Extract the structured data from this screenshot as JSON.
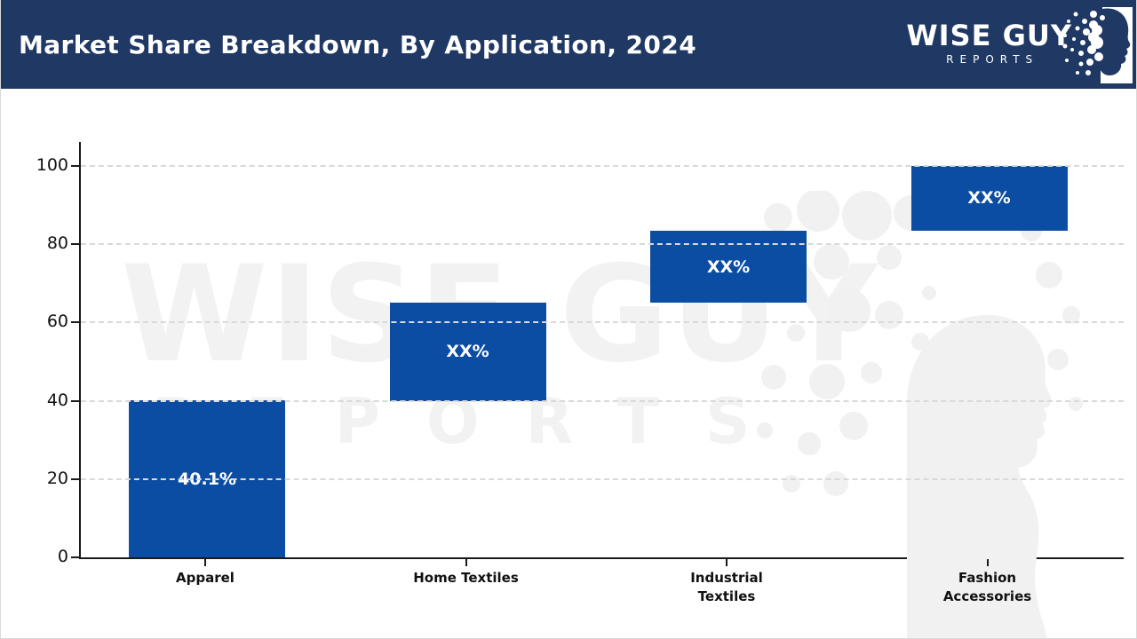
{
  "header": {
    "title": "Market Share Breakdown, By Application, 2024",
    "bg_color": "#1f3864",
    "logo": {
      "brand_line1": "WISE GUY",
      "brand_line2": "REPORTS"
    }
  },
  "watermark": {
    "line1": "WISE GUY",
    "line2": "REPORTS"
  },
  "chart_data": {
    "type": "bar",
    "variant": "floating-waterfall",
    "title": "Market Share Breakdown, By Application, 2024",
    "categories": [
      "Apparel",
      "Home Textiles",
      "Industrial\nTextiles",
      "Fashion\nAccessories"
    ],
    "bars": [
      {
        "category": "Apparel",
        "base": 0,
        "top": 40.1,
        "label": "40.1%"
      },
      {
        "category": "Home Textiles",
        "base": 40,
        "top": 65,
        "label": "XX%"
      },
      {
        "category": "Industrial Textiles",
        "base": 65,
        "top": 83.5,
        "label": "XX%"
      },
      {
        "category": "Fashion Accessories",
        "base": 83.5,
        "top": 100,
        "label": "XX%"
      }
    ],
    "xlabel": "",
    "ylabel": "",
    "ylim": [
      0,
      106
    ],
    "yticks": [
      0,
      20,
      40,
      60,
      80,
      100
    ],
    "grid": {
      "horizontal": true,
      "style": "dashed",
      "color": "#d9d9d9"
    },
    "legend": "none",
    "bar_color": "#0b4da2",
    "bar_label_color": "#ffffff",
    "axis_color": "#1a1a1a",
    "tick_label_color": "#111111"
  }
}
